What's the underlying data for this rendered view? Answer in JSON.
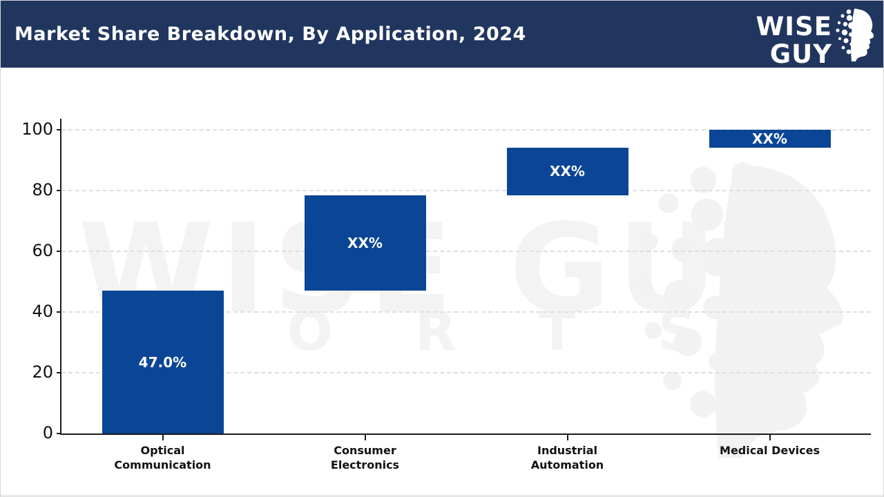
{
  "header": {
    "title": "Market Share Breakdown, By Application, 2024",
    "logo": {
      "line1": "WISE GUY",
      "line2": "R E P O R T S"
    }
  },
  "watermark": {
    "line1": "WISE GUY",
    "line2": "P O R T S"
  },
  "chart_data": {
    "type": "bar",
    "variant": "waterfall",
    "title": "Market Share Breakdown, By Application, 2024",
    "categories": [
      [
        "Optical",
        "Communication"
      ],
      [
        "Consumer",
        "Electronics"
      ],
      [
        "Industrial",
        "Automation"
      ],
      [
        "Medical Devices"
      ]
    ],
    "segments": [
      {
        "category": "Optical Communication",
        "start": 0,
        "end": 47,
        "label": "47.0%"
      },
      {
        "category": "Consumer Electronics",
        "start": 47,
        "end": 78.4,
        "label": "XX%"
      },
      {
        "category": "Industrial Automation",
        "start": 78.5,
        "end": 94,
        "label": "XX%"
      },
      {
        "category": "Medical Devices",
        "start": 94,
        "end": 100,
        "label": "XX%"
      }
    ],
    "ylim": [
      0,
      100
    ],
    "yticks": [
      0,
      20,
      40,
      60,
      80,
      100
    ],
    "xlabel": "",
    "ylabel": "",
    "grid": "horizontal-dashed",
    "legend": "none",
    "colors": {
      "bar": "#0b4596",
      "grid": "#dedede",
      "axis": "#1a1a1a",
      "bar_label_text": "#ffffff"
    }
  },
  "colors": {
    "header_bg": "#20365f",
    "page_bg": "#ffffff",
    "watermark": "#f2f2f2",
    "border": "#d6d6d6"
  }
}
